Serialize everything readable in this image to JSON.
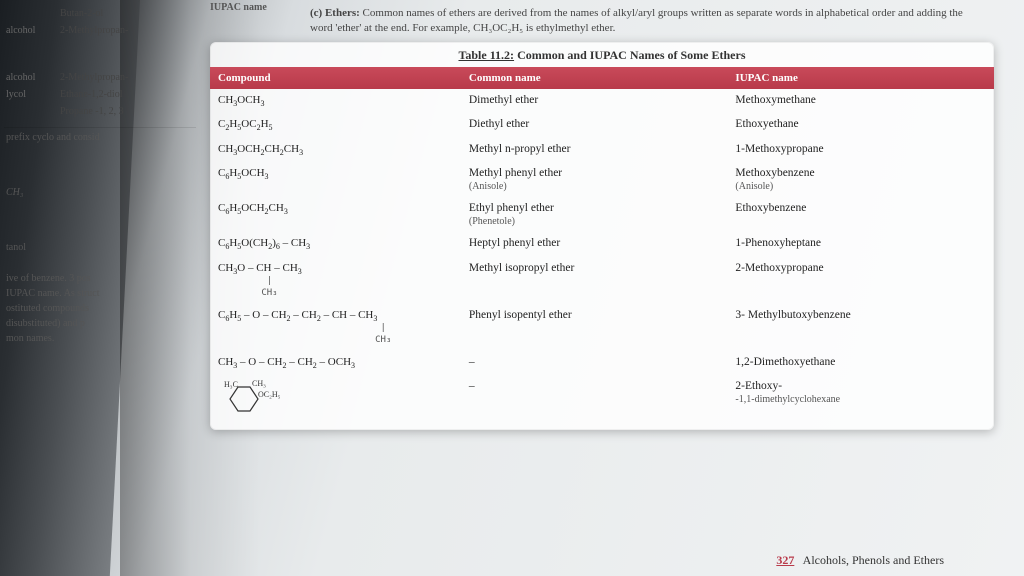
{
  "top": {
    "iupac_label": "IUPAC name",
    "section_label": "(c) Ethers:",
    "section_text": "Common names of ethers are derived from the names of alkyl/aryl groups written as separate words in alphabetical order and adding the word 'ether' at the end. For example, CH₃OC₂H₅ is ethylmethyl ether."
  },
  "left": {
    "rows": [
      {
        "label": "",
        "val": "Butan-2-ol"
      },
      {
        "label": "alcohol",
        "val": "2-Methylpropan-"
      },
      {
        "label": "alcohol",
        "val": "2-Methylpropan-"
      },
      {
        "label": "lycol",
        "val": "Ethane-1,2-diol"
      },
      {
        "label": "",
        "val": "Propane -1, 2, 3"
      }
    ],
    "block1": "prefix cyclo and consid",
    "block2": "CH₃",
    "block3": "tanol",
    "block4": "ive of benzene. 3 pos\nIUPAC name. As struct\nostituted compounds\ndisubstituted) and p\nmon names."
  },
  "table": {
    "title_prefix": "Table 11.2:",
    "title_rest": "Common and IUPAC Names of Some Ethers",
    "headers": {
      "c1": "Compound",
      "c2": "Common name",
      "c3": "IUPAC name"
    },
    "rows": [
      {
        "c1": "CH₃OCH₃",
        "c2": "Dimethyl ether",
        "c3": "Methoxymethane"
      },
      {
        "c1": "C₂H₅OC₂H₅",
        "c2": "Diethyl ether",
        "c3": "Ethoxyethane"
      },
      {
        "c1": "CH₃OCH₂CH₂CH₃",
        "c2": "Methyl n-propyl ether",
        "c3": "1-Methoxypropane"
      },
      {
        "c1": "C₆H₅OCH₃",
        "c2": "Methyl phenyl ether",
        "c2_sub": "(Anisole)",
        "c3": "Methoxybenzene",
        "c3_sub": "(Anisole)"
      },
      {
        "c1": "C₆H₅OCH₂CH₃",
        "c2": "Ethyl phenyl ether",
        "c2_sub": "(Phenetole)",
        "c3": "Ethoxybenzene"
      },
      {
        "c1": "C₆H₅O(CH₂)₆ – CH₃",
        "c2": "Heptyl phenyl ether",
        "c3": "1-Phenoxyheptane"
      },
      {
        "c1": "CH₃O – CH – CH₃",
        "c1_sub": "         |\n        CH₃",
        "c2": "Methyl isopropyl ether",
        "c3": "2-Methoxypropane"
      },
      {
        "c1": "C₆H₅ – O – CH₂ – CH₂ – CH – CH₃",
        "c1_sub": "                              |\n                             CH₃",
        "c2": "Phenyl isopentyl ether",
        "c3": "3- Methylbutoxybenzene"
      },
      {
        "c1": "CH₃ – O – CH₂ – CH₂ – OCH₃",
        "c2": "–",
        "c3": "1,2-Dimethoxyethane"
      },
      {
        "c1": "__CYCLO__",
        "c2": "–",
        "c3": "2-Ethoxy-",
        "c3_sub": "-1,1-dimethylcyclohexane"
      }
    ],
    "cyclo": {
      "l1": "H₃C",
      "l2": "CH₃",
      "l3": "OC₂H₅"
    }
  },
  "footer": {
    "page": "327",
    "text": "Alcohols, Phenols and Ethers"
  },
  "colors": {
    "header_bg": "#b83a4a",
    "accent": "#c94a5a"
  }
}
